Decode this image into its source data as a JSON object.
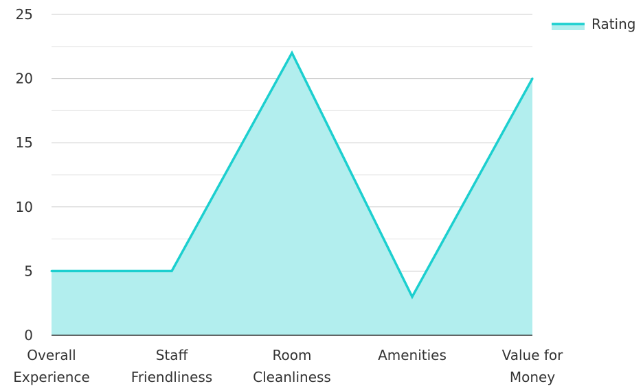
{
  "chart_data": {
    "type": "area",
    "categories": [
      [
        "Overall",
        "Experience"
      ],
      [
        "Staff",
        "Friendliness"
      ],
      [
        "Room",
        "Cleanliness"
      ],
      [
        "Amenities"
      ],
      [
        "Value for",
        "Money"
      ]
    ],
    "series": [
      {
        "name": "Rating",
        "values": [
          5,
          5,
          22,
          3,
          20
        ]
      }
    ],
    "title": "",
    "xlabel": "",
    "ylabel": "",
    "ylim": [
      0,
      25
    ],
    "yticks": [
      0,
      5,
      10,
      15,
      20,
      25
    ],
    "grid": true,
    "legend": {
      "position": "top-right",
      "label": "Rating"
    },
    "colors": {
      "line": "#1ccfcf",
      "fill": "#b2eeee"
    }
  }
}
